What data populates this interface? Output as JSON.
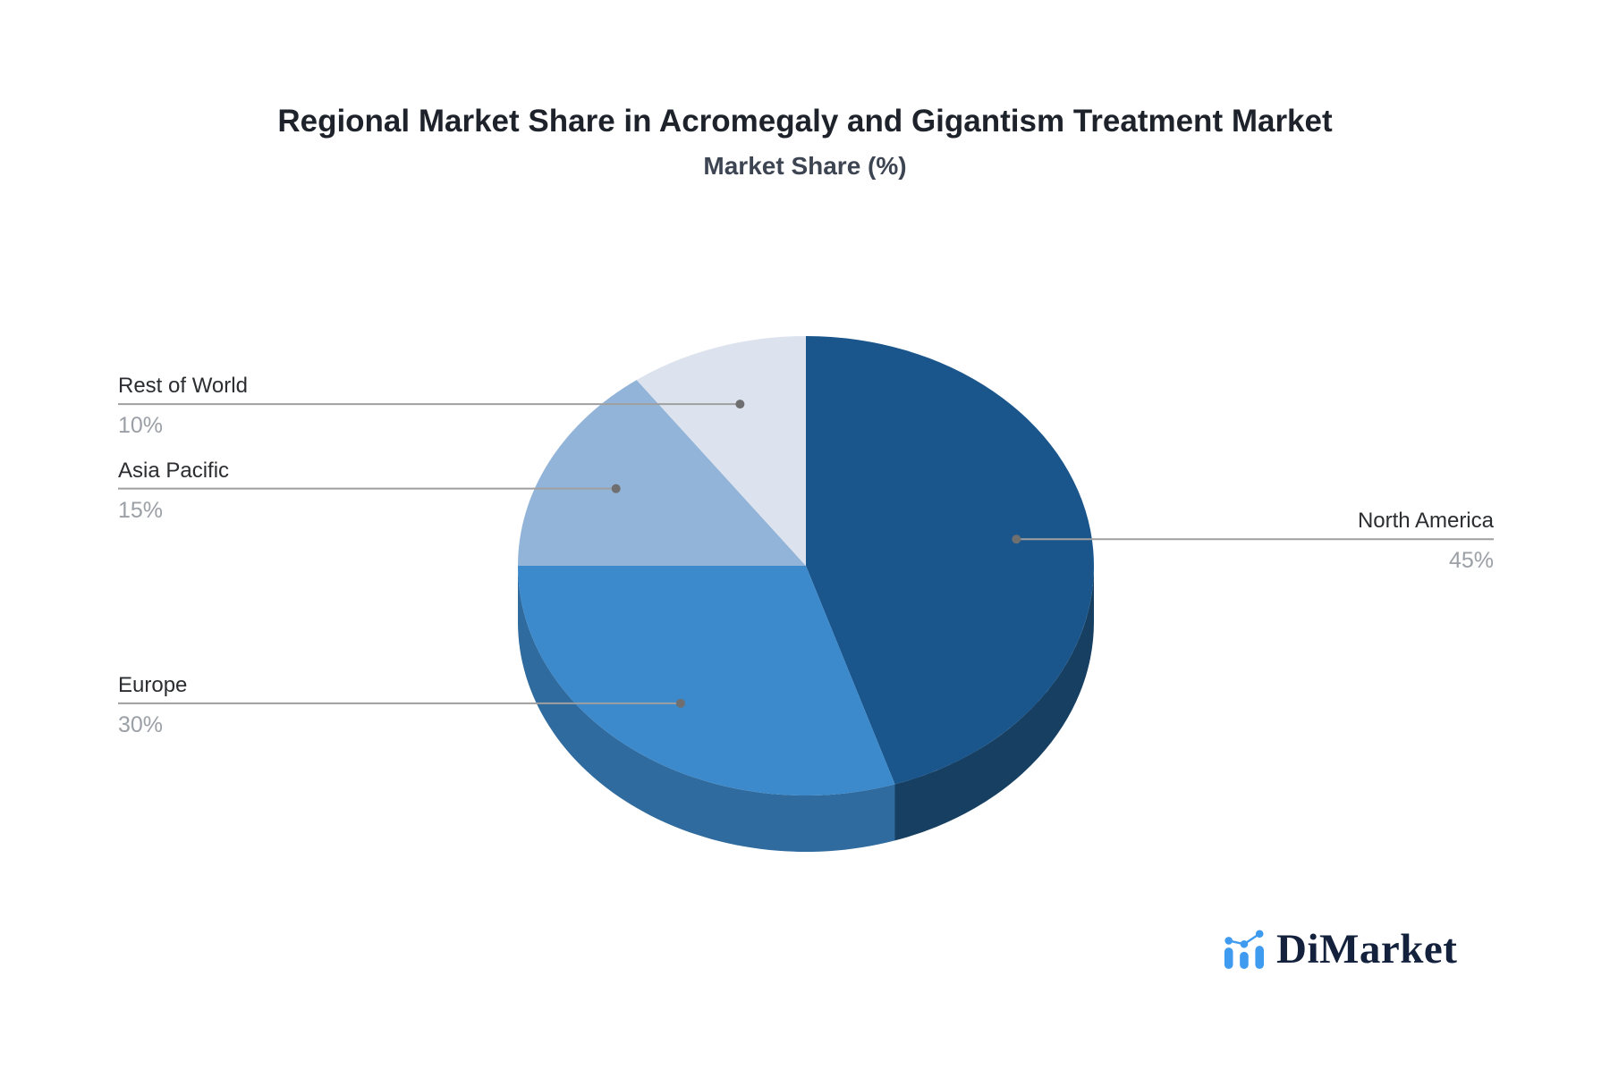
{
  "title": "Regional Market Share in Acromegaly and Gigantism Treatment Market",
  "subtitle": "Market Share (%)",
  "chart_data": {
    "type": "pie",
    "title": "Regional Market Share in Acromegaly and Gigantism Treatment Market",
    "subtitle": "Market Share (%)",
    "unit": "%",
    "start_angle_deg": 0,
    "direction": "clockwise",
    "style": "3d",
    "legend_position": "none",
    "slices": [
      {
        "label": "North America",
        "value": 45,
        "display": "45%",
        "color": "#1a568c",
        "side_color": "#163f61",
        "label_side": "right"
      },
      {
        "label": "Europe",
        "value": 30,
        "display": "30%",
        "color": "#3c89cb",
        "side_color": "#2f6b9e",
        "label_side": "left"
      },
      {
        "label": "Asia Pacific",
        "value": 15,
        "display": "15%",
        "color": "#92b4d9",
        "label_side": "left"
      },
      {
        "label": "Rest of World",
        "value": 10,
        "display": "10%",
        "color": "#dde3ee",
        "label_side": "left"
      }
    ]
  },
  "branding": {
    "logo_text": "DiMarket",
    "logo_icon": "bar-chart-icon",
    "logo_icon_color": "#3f9bf0",
    "logo_text_color": "#13213c"
  },
  "colors": {
    "background": "#ffffff",
    "title_text": "#1e222b",
    "subtitle_text": "#3d4452",
    "label_text": "#2b2d30",
    "percent_text": "#9aa0a6",
    "leader_line": "#9f9f9f",
    "leader_dot": "#6f6f6f"
  }
}
